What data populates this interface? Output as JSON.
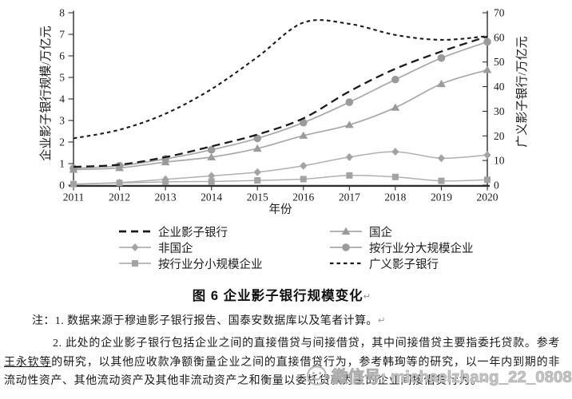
{
  "chart_data": {
    "type": "line",
    "title": "图 6 企业影子银行规模变化",
    "xlabel": "年份",
    "ylabel_left": "企业影子银行规模/万亿元",
    "ylabel_right": "广义影子银行/万亿元",
    "x": [
      2011,
      2012,
      2013,
      2014,
      2015,
      2016,
      2017,
      2018,
      2019,
      2020
    ],
    "left_ylim": [
      0,
      8
    ],
    "right_ylim": [
      0,
      70
    ],
    "left_ticks": [
      0,
      1,
      2,
      3,
      4,
      5,
      6,
      7,
      8
    ],
    "right_ticks": [
      0,
      10,
      20,
      30,
      40,
      50,
      60,
      70
    ],
    "grid": false,
    "legend_position": "bottom",
    "series": [
      {
        "name": "企业影子银行",
        "axis": "left",
        "line_color": "#1a1a1a",
        "line_width": 2.3,
        "dash": "long",
        "marker": "none",
        "values": [
          0.85,
          0.95,
          1.3,
          1.8,
          2.35,
          3.1,
          4.35,
          5.4,
          6.2,
          6.9
        ]
      },
      {
        "name": "国企",
        "axis": "left",
        "line_color": "#a8a8a8",
        "line_width": 1.7,
        "dash": "none",
        "marker": "triangle",
        "marker_color": "#9b9b9b",
        "values": [
          0.72,
          0.8,
          1.07,
          1.3,
          1.7,
          2.3,
          2.8,
          3.6,
          4.7,
          5.35
        ]
      },
      {
        "name": "非国企",
        "axis": "left",
        "line_color": "#b0b0b0",
        "line_width": 1.5,
        "dash": "none",
        "marker": "diamond",
        "marker_color": "#a3a3a3",
        "values": [
          0.05,
          0.12,
          0.27,
          0.43,
          0.6,
          0.9,
          1.3,
          1.55,
          1.25,
          1.4
        ]
      },
      {
        "name": "按行业分大规模企业",
        "axis": "left",
        "line_color": "#a8a8a8",
        "line_width": 1.7,
        "dash": "none",
        "marker": "circle",
        "marker_color": "#9b9b9b",
        "values": [
          0.78,
          0.9,
          1.22,
          1.64,
          2.17,
          2.9,
          3.85,
          4.9,
          5.9,
          6.65
        ]
      },
      {
        "name": "按行业分小规模企业",
        "axis": "left",
        "line_color": "#b0b0b0",
        "line_width": 1.5,
        "dash": "none",
        "marker": "square",
        "marker_color": "#a3a3a3",
        "values": [
          0.05,
          0.1,
          0.15,
          0.17,
          0.22,
          0.28,
          0.45,
          0.38,
          0.2,
          0.25
        ]
      },
      {
        "name": "广义影子银行",
        "axis": "right",
        "line_color": "#1a1a1a",
        "line_width": 2.1,
        "dash": "short",
        "marker": "none",
        "values": [
          19,
          22.5,
          29,
          39,
          52,
          66,
          65.5,
          61,
          59,
          60.5
        ]
      }
    ]
  },
  "caption": {
    "text": "图 6 企业影子银行规模变化",
    "return_mark": "↵"
  },
  "notes": {
    "note1": "注：1. 数据来源于穆迪影子银行报告、国泰安数据库以及笔者计算。",
    "note2_before": "2. 此处的企业影子银行包括企业之间的直接借贷与间接借贷，其中间接借贷主要指委托贷款。参考",
    "note2_underlined": "王永钦等",
    "note2_after": "的研究，以其他应收款净额衡量企业之间的直接借贷行为，参考韩珣等的研究，以一年内到期的非流动性资产、其他流动资产及其他非流动资产之和衡量以委托贷款为主的企业间接借贷行为。",
    "return_mark": "↵"
  },
  "watermark": {
    "icon": "smiley-icon",
    "text": "微信号: michaelzhang_22_0808",
    "color": "#b5b5b5"
  },
  "colors": {
    "axis": "#2e2e2e",
    "text": "#1a1a1a",
    "gray_line": "#a8a8a8",
    "black_line": "#1a1a1a"
  }
}
